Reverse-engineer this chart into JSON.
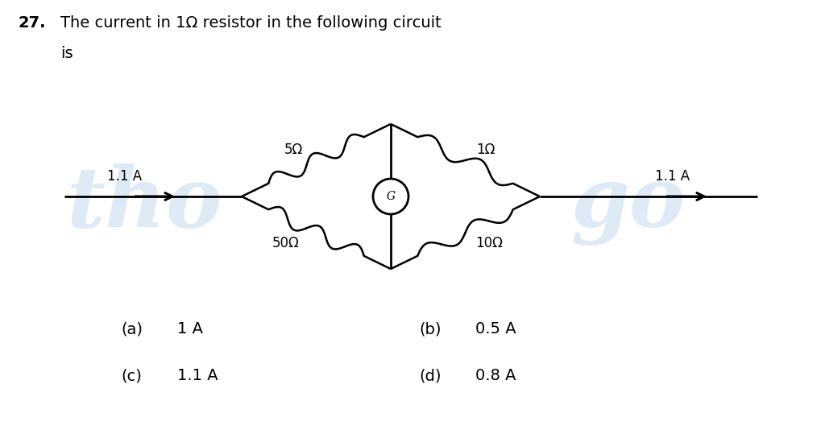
{
  "title_num": "27.",
  "title_text": "The current in 1Ω resistor in the following circuit",
  "title_text2": "is",
  "bg_watermark_color": "#c8dff0",
  "watermark_text1": "tho",
  "watermark_text2": "go",
  "wire_color": "#000000",
  "left_current_label": "1.1 A",
  "right_current_label": "1.1 A",
  "r_top_left": "5Ω",
  "r_top_right": "1Ω",
  "r_bot_left": "50Ω",
  "r_bot_right": "10Ω",
  "galvanometer_label": "G",
  "options": [
    [
      "(a)",
      "1 A"
    ],
    [
      "(b)",
      "0.5 A"
    ],
    [
      "(c)",
      "1.1 A"
    ],
    [
      "(d)",
      "0.8 A"
    ]
  ],
  "fig_width": 10.24,
  "fig_height": 5.39
}
